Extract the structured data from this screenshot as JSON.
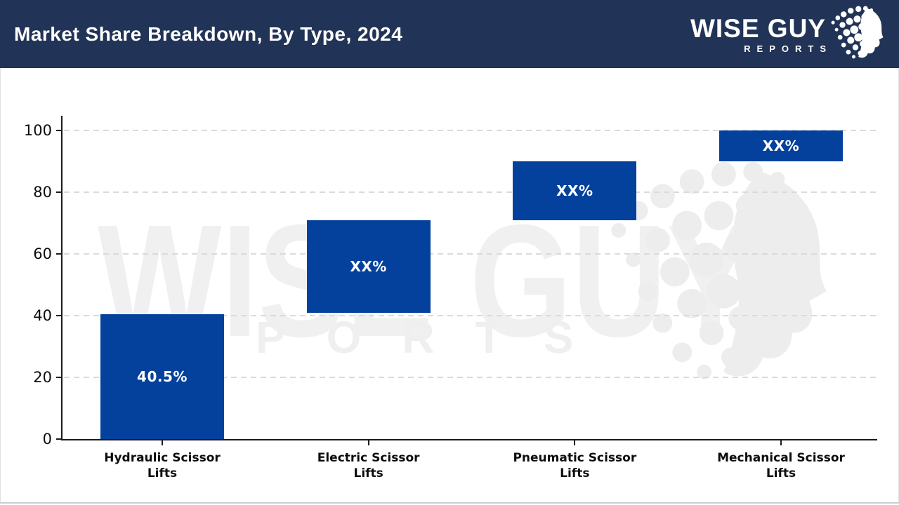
{
  "header": {
    "title": "Market Share Breakdown, By Type, 2024",
    "logo": {
      "wordmark": "WISE GUY",
      "subtext": "REPORTS"
    }
  },
  "watermark": {
    "line1": "WISE GUY",
    "line2": "REPORTS"
  },
  "chart_data": {
    "type": "bar",
    "subtype": "waterfall",
    "title": "Market Share Breakdown, By Type, 2024",
    "xlabel": "",
    "ylabel": "",
    "categories": [
      [
        "Hydraulic Scissor",
        "Lifts"
      ],
      [
        "Electric Scissor",
        "Lifts"
      ],
      [
        "Pneumatic Scissor",
        "Lifts"
      ],
      [
        "Mechanical Scissor",
        "Lifts"
      ]
    ],
    "series": [
      {
        "name": "Market share (%)",
        "segments": [
          {
            "category": "Hydraulic Scissor Lifts",
            "start": 0,
            "end": 40.5,
            "label": "40.5%"
          },
          {
            "category": "Electric Scissor Lifts",
            "start": 41,
            "end": 71,
            "label": "XX%"
          },
          {
            "category": "Pneumatic Scissor Lifts",
            "start": 71,
            "end": 90,
            "label": "XX%"
          },
          {
            "category": "Mechanical Scissor Lifts",
            "start": 90,
            "end": 100,
            "label": "XX%"
          }
        ]
      }
    ],
    "yticks": [
      0,
      20,
      40,
      60,
      80,
      100
    ],
    "ylim": [
      0,
      105
    ],
    "grid": "horizontal-dashed",
    "legend": "none",
    "bar_color": "#04419c",
    "bar_label_color": "#ffffff",
    "grid_color": "#dadada",
    "axis_color": "#1a1a1a"
  },
  "colors": {
    "header_bg": "#213457",
    "title_text": "#ffffff",
    "watermark": "#f0f0f0"
  }
}
